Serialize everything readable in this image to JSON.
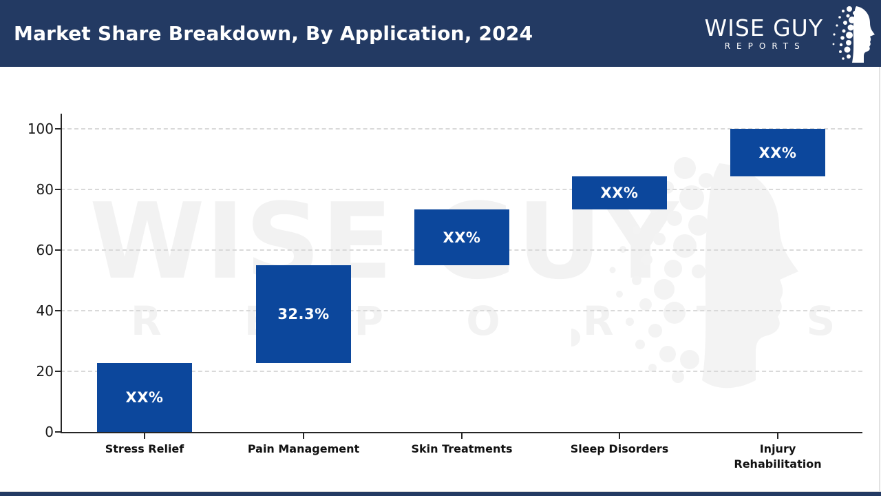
{
  "header": {
    "title": "Market Share Breakdown, By Application, 2024",
    "bg_color": "#233a63",
    "logo": {
      "line1": "WISE GUY",
      "line2": "REPORTS"
    }
  },
  "watermark": {
    "line1": "WISE GUY",
    "line2": "REPORTS"
  },
  "chart_data": {
    "type": "bar",
    "subtype": "waterfall",
    "title": "Market Share Breakdown, By Application, 2024",
    "categories": [
      "Stress Relief",
      "Pain Management",
      "Skin Treatments",
      "Sleep Disorders",
      "Injury Rehabilitation"
    ],
    "bars": [
      {
        "category": "Stress Relief",
        "start": 0,
        "end": 22.7,
        "value_label": "XX%"
      },
      {
        "category": "Pain Management",
        "start": 22.7,
        "end": 55.0,
        "value_label": "32.3%"
      },
      {
        "category": "Skin Treatments",
        "start": 55.0,
        "end": 73.4,
        "value_label": "XX%"
      },
      {
        "category": "Sleep Disorders",
        "start": 73.4,
        "end": 84.3,
        "value_label": "XX%"
      },
      {
        "category": "Injury Rehabilitation",
        "start": 84.3,
        "end": 100.0,
        "value_label": "XX%"
      }
    ],
    "ylim": [
      0,
      100
    ],
    "yticks": [
      0,
      20,
      40,
      60,
      80,
      100
    ],
    "grid": "horizontal-dashed",
    "legend": "none",
    "bar_color": "#0c479c",
    "value_label_color": "#ffffff",
    "axis_color": "#262626"
  },
  "colors": {
    "header_bg": "#233a63",
    "footer_bg": "#233a63",
    "bar_blue": "#0c479c",
    "watermark_gray": "#f2f2f2"
  }
}
